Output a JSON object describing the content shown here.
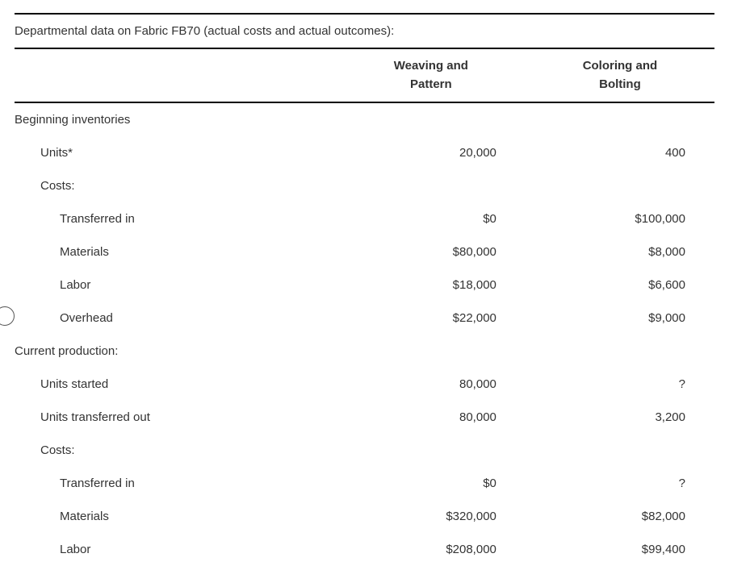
{
  "table": {
    "title": "Departmental data on Fabric FB70 (actual costs and actual outcomes):",
    "columns": {
      "a": {
        "line1": "Weaving and",
        "line2": "Pattern"
      },
      "b": {
        "line1": "Coloring and",
        "line2": "Bolting"
      }
    },
    "rows": [
      {
        "label": "Beginning inventories",
        "indent": 0,
        "a": "",
        "b": ""
      },
      {
        "label": "Units*",
        "indent": 1,
        "a": "20,000",
        "b": "400"
      },
      {
        "label": "Costs:",
        "indent": 1,
        "a": "",
        "b": ""
      },
      {
        "label": "Transferred in",
        "indent": 2,
        "a": "$0",
        "b": "$100,000"
      },
      {
        "label": "Materials",
        "indent": 2,
        "a": "$80,000",
        "b": "$8,000"
      },
      {
        "label": "Labor",
        "indent": 2,
        "a": "$18,000",
        "b": "$6,600"
      },
      {
        "label": "Overhead",
        "indent": 2,
        "a": "$22,000",
        "b": "$9,000"
      },
      {
        "label": "Current production:",
        "indent": 0,
        "a": "",
        "b": ""
      },
      {
        "label": "Units started",
        "indent": 1,
        "a": "80,000",
        "b": "?"
      },
      {
        "label": "Units transferred out",
        "indent": 1,
        "a": "80,000",
        "b": "3,200"
      },
      {
        "label": "Costs:",
        "indent": 1,
        "a": "",
        "b": ""
      },
      {
        "label": "Transferred in",
        "indent": 2,
        "a": "$0",
        "b": "?"
      },
      {
        "label": "Materials",
        "indent": 2,
        "a": "$320,000",
        "b": "$82,000"
      },
      {
        "label": "Labor",
        "indent": 2,
        "a": "$208,000",
        "b": "$99,400"
      }
    ],
    "colors": {
      "text": "#333333",
      "border": "#000000",
      "background": "#ffffff"
    }
  }
}
